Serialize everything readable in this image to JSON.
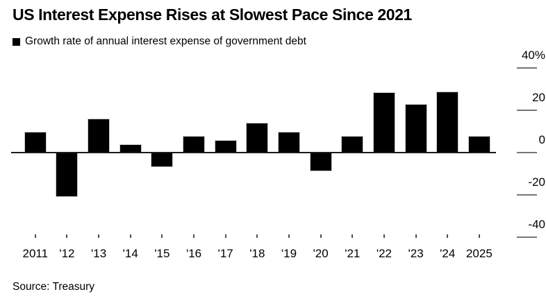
{
  "header": {
    "title": "US Interest Expense Rises at Slowest Pace Since 2021",
    "legend_label": "Growth rate of annual interest expense of government debt"
  },
  "footer": {
    "source": "Source: Treasury"
  },
  "chart_data": {
    "type": "bar",
    "title": "US Interest Expense Rises at Slowest Pace Since 2021",
    "legend": "Growth rate of annual interest expense of government debt",
    "categories": [
      "2011",
      "'12",
      "'13",
      "'14",
      "'15",
      "'16",
      "'17",
      "'18",
      "'19",
      "'20",
      "'21",
      "'22",
      "'23",
      "'24",
      "2025"
    ],
    "values": [
      10,
      -21,
      16,
      4,
      -7,
      8,
      6,
      14,
      10,
      -9,
      8,
      28.5,
      23,
      29,
      8
    ],
    "unit": "%",
    "xlabel": "",
    "ylabel": "",
    "ylim": [
      -48,
      44
    ],
    "yticks": [
      {
        "v": 40,
        "label": "40%"
      },
      {
        "v": 20,
        "label": "20"
      },
      {
        "v": 0,
        "label": "0"
      },
      {
        "v": -20,
        "label": "-20"
      },
      {
        "v": -40,
        "label": "-40"
      }
    ],
    "legend_position": "top-left",
    "y_axis_side": "right",
    "grid": "off",
    "bar_color": "#000000",
    "axis_line_color": "#1a1a1a",
    "tick_color": "#757575",
    "source": "Source: Treasury"
  }
}
